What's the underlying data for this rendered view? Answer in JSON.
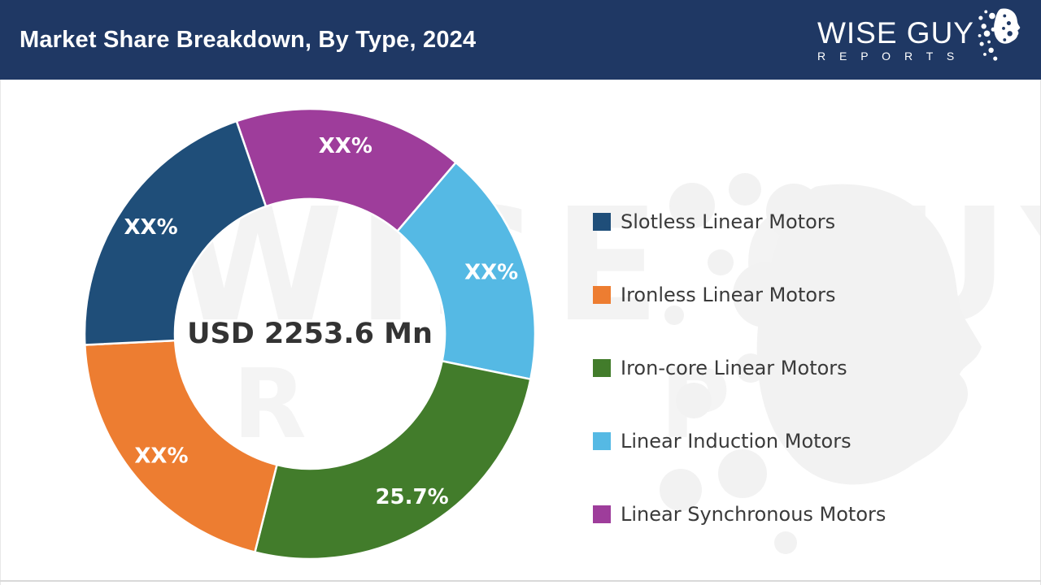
{
  "header": {
    "title": "Market Share Breakdown, By Type, 2024",
    "bg_color": "#1F3864",
    "logo": {
      "line1": "WISE GUY",
      "line2": "R E P O R T S"
    }
  },
  "watermark": {
    "line1": "WISE GUY",
    "line2": "R E P O R T S"
  },
  "chart_data": {
    "type": "pie",
    "subtype": "donut",
    "title": "Market Share Breakdown, By Type, 2024",
    "center_label": "USD 2253.6 Mn",
    "start_angle_deg": -19,
    "legend_position": "right",
    "segments": [
      {
        "name": "Linear Synchronous Motors",
        "display_label": "XX%",
        "value_pct_est": 16.5,
        "color": "#9E3D9B"
      },
      {
        "name": "Linear Induction Motors",
        "display_label": "XX%",
        "value_pct_est": 17.0,
        "color": "#55B9E4"
      },
      {
        "name": "Iron-core Linear Motors",
        "display_label": "25.7%",
        "value_pct_est": 25.7,
        "color": "#427C2B"
      },
      {
        "name": "Ironless Linear Motors",
        "display_label": "XX%",
        "value_pct_est": 20.3,
        "color": "#ED7D31"
      },
      {
        "name": "Slotless Linear Motors",
        "display_label": "XX%",
        "value_pct_est": 20.5,
        "color": "#1F4E79"
      }
    ]
  },
  "legend": {
    "items": [
      {
        "label": "Slotless Linear Motors",
        "color": "#1F4E79"
      },
      {
        "label": "Ironless Linear Motors",
        "color": "#ED7D31"
      },
      {
        "label": "Iron-core Linear Motors",
        "color": "#427C2B"
      },
      {
        "label": "Linear Induction Motors",
        "color": "#55B9E4"
      },
      {
        "label": "Linear Synchronous Motors",
        "color": "#9E3D9B"
      }
    ]
  }
}
